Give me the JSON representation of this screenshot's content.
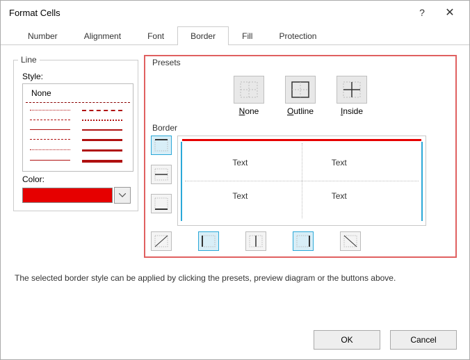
{
  "dialog": {
    "title": "Format Cells"
  },
  "tabs": {
    "number": "Number",
    "alignment": "Alignment",
    "font": "Font",
    "border": "Border",
    "fill": "Fill",
    "protection": "Protection"
  },
  "line_panel": {
    "legend": "Line",
    "style_label": "Style:",
    "none_label": "None",
    "color_label": "Color:",
    "selected_color": "#e60000",
    "sample_color": "#b01010"
  },
  "presets": {
    "section": "Presets",
    "none_label": "None",
    "outline_label": "Outline",
    "inside_label": "Inside"
  },
  "border_section": {
    "section": "Border",
    "preview_text": "Text"
  },
  "hint": "The selected border style can be applied by clicking the presets, preview diagram or the buttons above.",
  "buttons": {
    "ok": "OK",
    "cancel": "Cancel"
  },
  "colors": {
    "highlight_box": "#e06060",
    "preview_top": "#e60000",
    "preview_side": "#2aa8d8"
  }
}
